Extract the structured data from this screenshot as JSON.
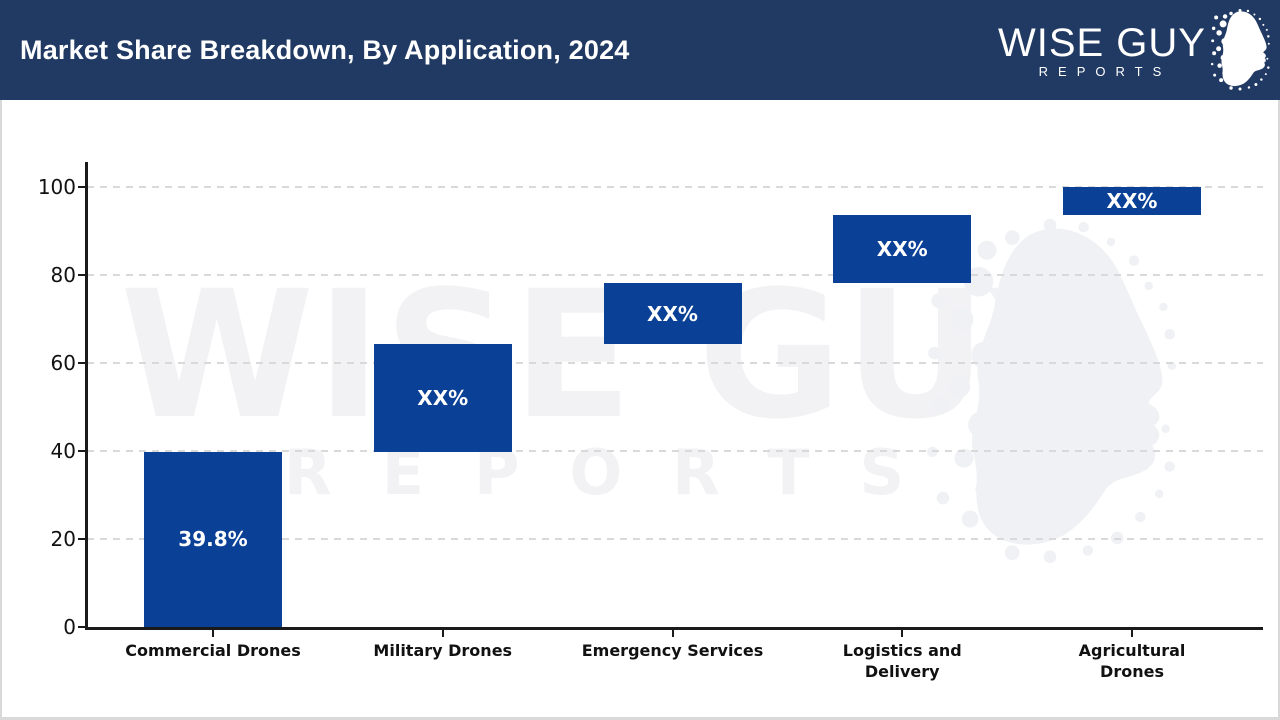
{
  "header": {
    "title": "Market Share Breakdown, By Application, 2024",
    "background_color": "#213A64",
    "logo": {
      "brand_top": "WISE GUY",
      "brand_bottom": "REPORTS"
    }
  },
  "watermark": {
    "line1": "WISE GUY",
    "line2": "REPORTS"
  },
  "chart_data": {
    "type": "bar",
    "variant": "waterfall",
    "title": "Market Share Breakdown, By Application, 2024",
    "categories": [
      "Commercial Drones",
      "Military Drones",
      "Emergency Services",
      "Logistics and\nDelivery",
      "Agricultural\nDrones"
    ],
    "segments": [
      {
        "category": "Commercial Drones",
        "start": 0,
        "end": 39.8,
        "value": 39.8,
        "label": "39.8%"
      },
      {
        "category": "Military Drones",
        "start": 39.8,
        "end": 64.3,
        "value": 24.5,
        "label": "XX%"
      },
      {
        "category": "Emergency Services",
        "start": 64.3,
        "end": 78.1,
        "value": 13.8,
        "label": "XX%"
      },
      {
        "category": "Logistics and Delivery",
        "start": 78.1,
        "end": 93.7,
        "value": 15.6,
        "label": "XX%"
      },
      {
        "category": "Agricultural Drones",
        "start": 93.7,
        "end": 100,
        "value": 6.3,
        "label": "XX%"
      }
    ],
    "xlabel": "",
    "ylabel": "",
    "ylim": [
      0,
      105
    ],
    "yticks": [
      0,
      20,
      40,
      60,
      80,
      100
    ],
    "grid": "horizontal-dashed",
    "legend": "none",
    "bar_color": "#0A4095",
    "bar_label_color": "#FFFFFF",
    "axis_color": "#1a1a1a",
    "grid_color": "#D9D9D9"
  }
}
